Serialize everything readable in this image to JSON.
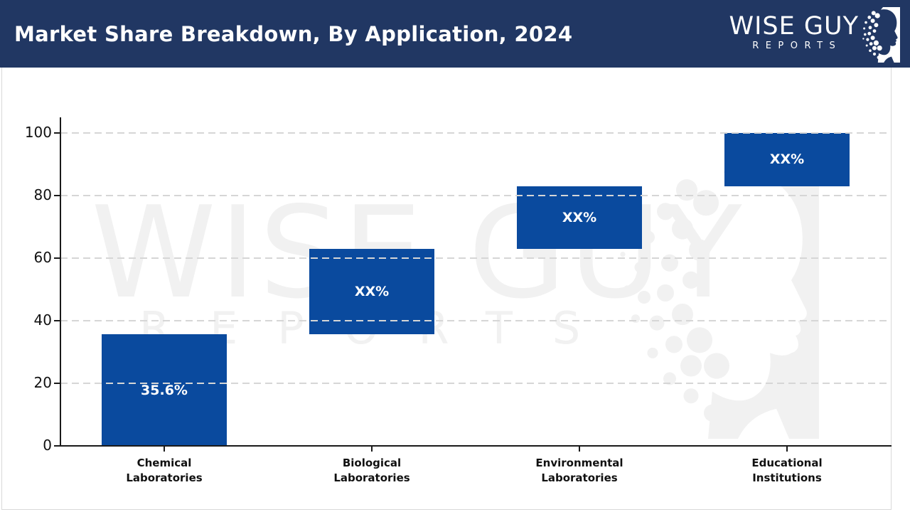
{
  "header": {
    "title": "Market Share Breakdown, By Application, 2024",
    "logo": {
      "primary": "WISE GUY",
      "secondary": "REPORTS"
    }
  },
  "watermark": {
    "primary": "WISE GUY",
    "secondary": "REPORTS"
  },
  "colors": {
    "header_bg": "#213763",
    "bar": "#0a4a9e",
    "bar_label": "#ffffff",
    "axis": "#1a1a1a",
    "grid": "#d6d6d6",
    "tick_label": "#111111",
    "watermark": "#f1f1f1",
    "panel_border": "#d9d9d9"
  },
  "chart_data": {
    "type": "bar",
    "variant": "floating-segment-waterfall",
    "title": "Market Share Breakdown, By Application, 2024",
    "categories": [
      "Chemical Laboratories",
      "Biological Laboratories",
      "Environmental Laboratories",
      "Educational Institutions"
    ],
    "category_lines": [
      [
        "Chemical",
        "Laboratories"
      ],
      [
        "Biological",
        "Laboratories"
      ],
      [
        "Environmental",
        "Laboratories"
      ],
      [
        "Educational",
        "Institutions"
      ]
    ],
    "segments": [
      {
        "category": "Chemical Laboratories",
        "start": 0,
        "end": 35.6,
        "value": 35.6,
        "label": "35.6%"
      },
      {
        "category": "Biological Laboratories",
        "start": 35.6,
        "end": 63,
        "value": 27.4,
        "label": "XX%"
      },
      {
        "category": "Environmental Laboratories",
        "start": 63,
        "end": 83,
        "value": 20,
        "label": "XX%"
      },
      {
        "category": "Educational Institutions",
        "start": 83,
        "end": 100,
        "value": 17,
        "label": "XX%"
      }
    ],
    "ylim": [
      0,
      100
    ],
    "yticks": [
      0,
      20,
      40,
      60,
      80,
      100
    ],
    "xlabel": "",
    "ylabel": "",
    "grid": "horizontal-dashed",
    "legend": "none"
  }
}
